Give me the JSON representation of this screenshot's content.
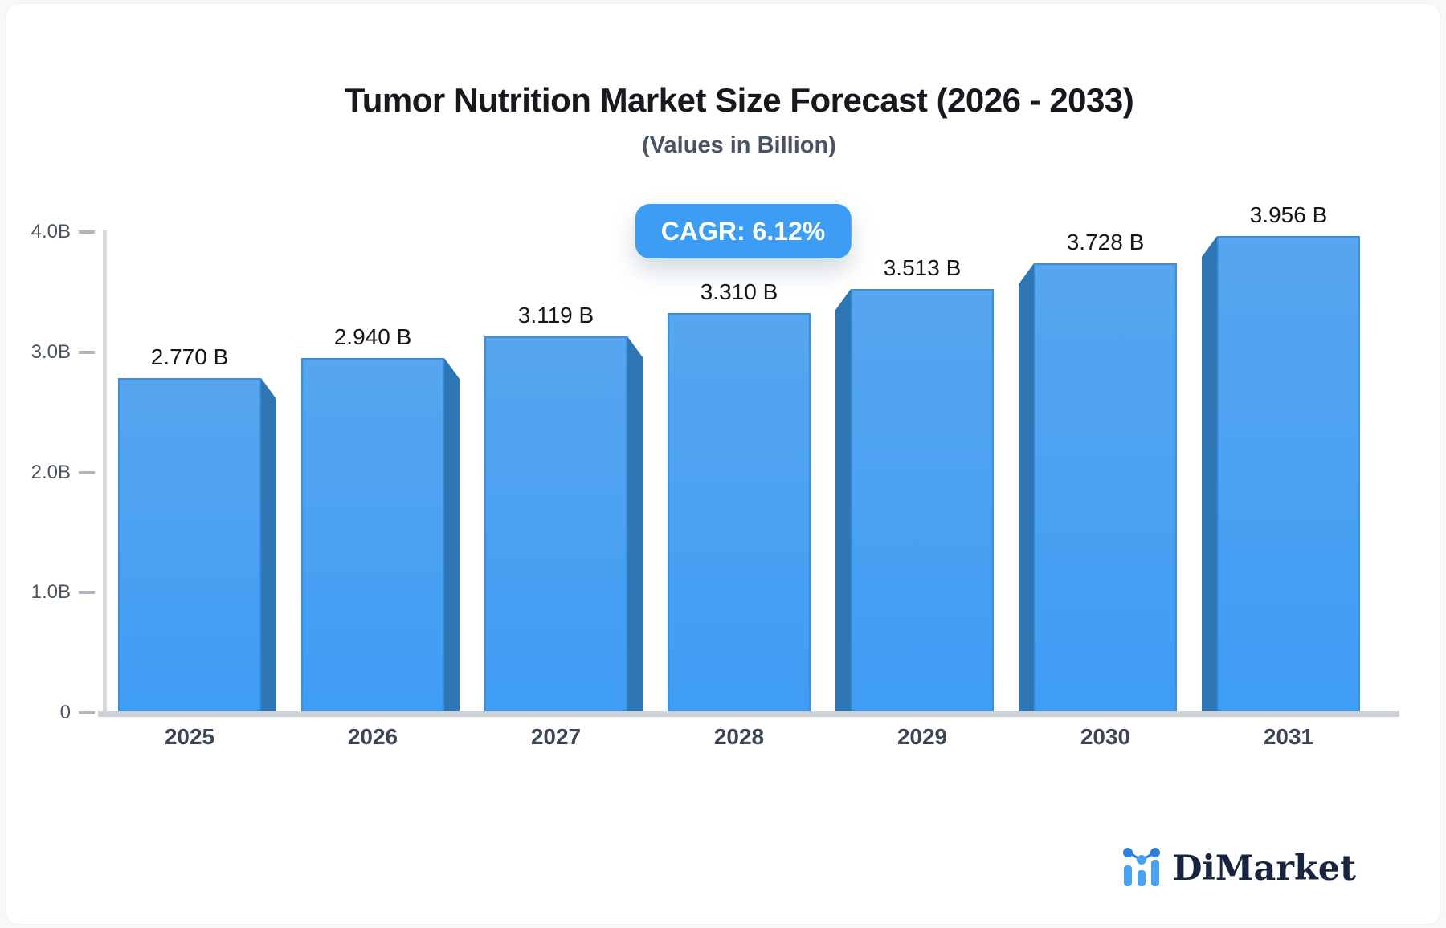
{
  "header": {
    "title": "Tumor Nutrition Market Size Forecast (2026 - 2033)",
    "subtitle": "(Values in Billion)",
    "cagr_label": "CAGR: 6.12%"
  },
  "chart_data": {
    "type": "bar",
    "title": "Tumor Nutrition Market Size Forecast (2026 - 2033)",
    "subtitle": "(Values in Billion)",
    "annotation": "CAGR: 6.12%",
    "categories": [
      "2025",
      "2026",
      "2027",
      "2028",
      "2029",
      "2030",
      "2031"
    ],
    "values": [
      2.77,
      2.94,
      3.119,
      3.31,
      3.513,
      3.728,
      3.956
    ],
    "value_labels": [
      "2.770 B",
      "2.940 B",
      "3.119 B",
      "3.310 B",
      "3.513 B",
      "3.728 B",
      "3.956 B"
    ],
    "xlabel": "",
    "ylabel": "",
    "ylim": [
      0,
      4.0
    ],
    "ytick_values": [
      0,
      1,
      2,
      3,
      4
    ],
    "ytick_labels": [
      "0",
      "1.0B",
      "2.0B",
      "3.0B",
      "4.0B"
    ],
    "grid": "off",
    "legend": "none",
    "bar_style": "3d-beveled"
  },
  "colors": {
    "accent": "#3d9cf4",
    "bar-top": "#57a6ef",
    "bar-bottom": "#3f9df5",
    "bar-border": "#3a8fdc",
    "bar-side": "#2e76b4",
    "logo-navy": "#182440",
    "logo-blue": "#47a1f4",
    "logo-blue-dark": "#2d7ee2"
  },
  "footer": {
    "brand": "DiMarket"
  }
}
